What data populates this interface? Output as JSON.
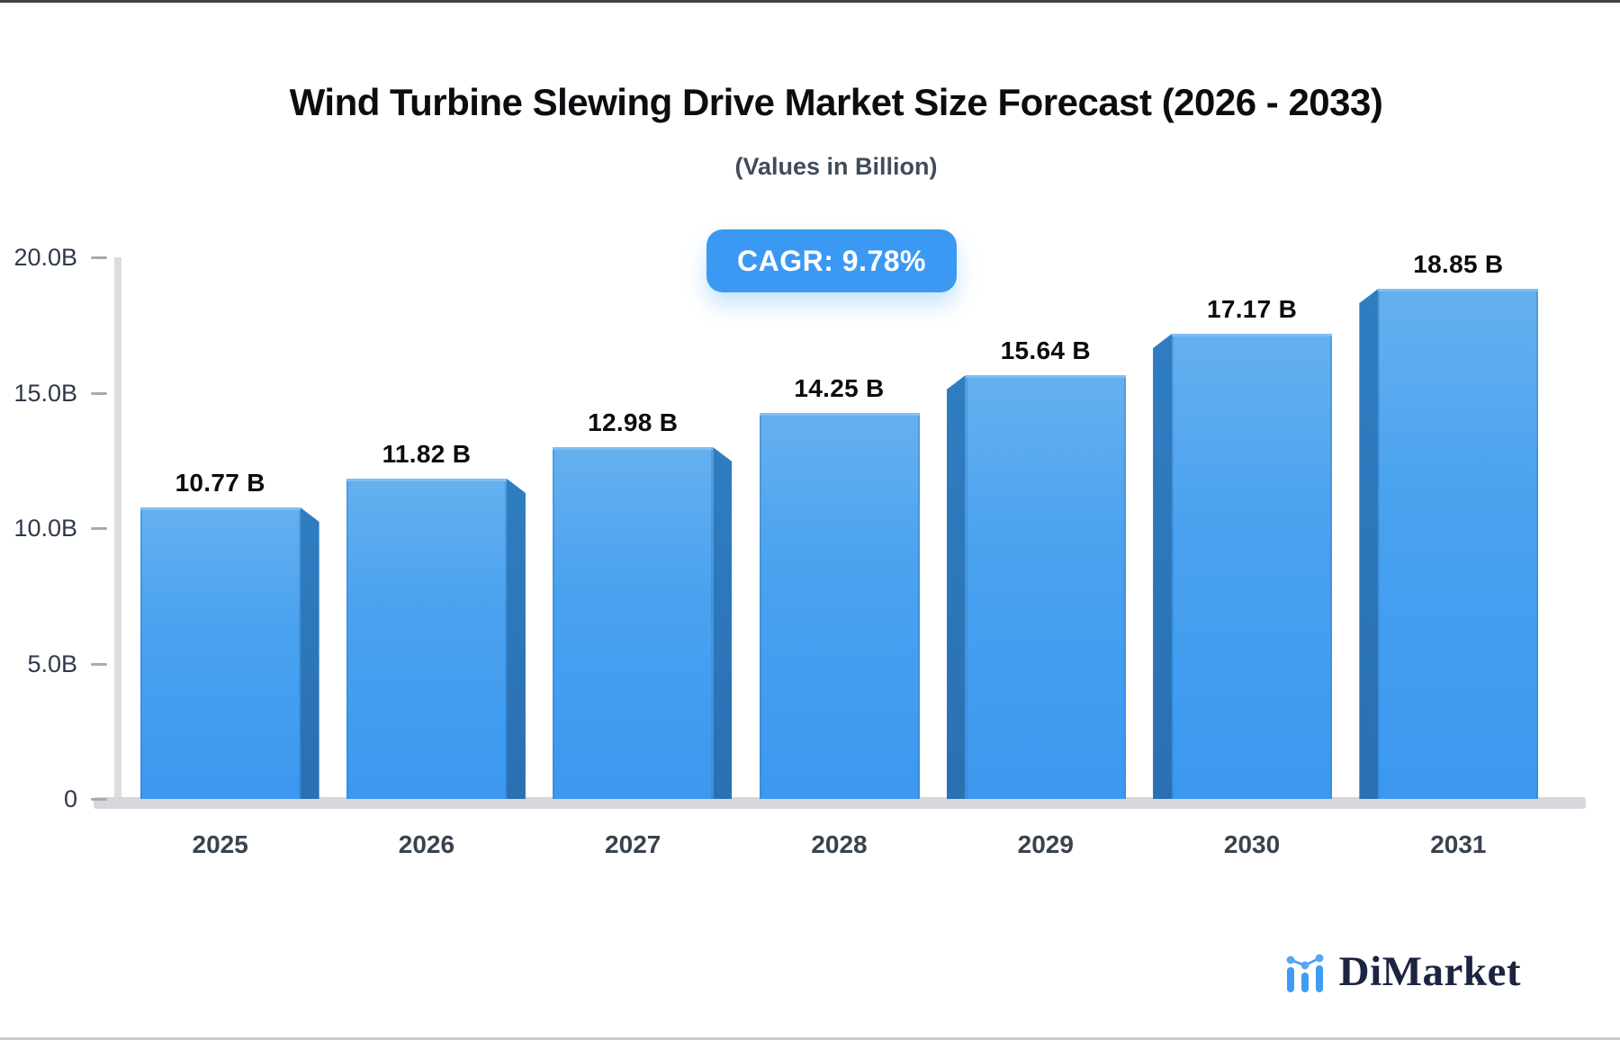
{
  "header": {
    "title": "Wind Turbine Slewing Drive Market Size Forecast (2026 - 2033)",
    "subtitle": "(Values in Billion)"
  },
  "badge": {
    "label": "CAGR: 9.78%"
  },
  "chart_data": {
    "type": "bar",
    "title": "Wind Turbine Slewing Drive Market Size Forecast (2026 - 2033)",
    "subtitle": "(Values in Billion)",
    "cagr_label": "CAGR: 9.78%",
    "categories": [
      "2025",
      "2026",
      "2027",
      "2028",
      "2029",
      "2030",
      "2031"
    ],
    "values": [
      10.77,
      11.82,
      12.98,
      14.25,
      15.64,
      17.17,
      18.85
    ],
    "value_labels": [
      "10.77 B",
      "11.82 B",
      "12.98 B",
      "14.25 B",
      "15.64 B",
      "17.17 B",
      "18.85 B"
    ],
    "ylim": [
      0,
      20
    ],
    "yticks": [
      {
        "label": "20.0B",
        "value": 20
      },
      {
        "label": "15.0B",
        "value": 15
      },
      {
        "label": "10.0B",
        "value": 10
      },
      {
        "label": "5.0B",
        "value": 5
      },
      {
        "label": "0",
        "value": 0
      }
    ],
    "xlabel": "",
    "ylabel": "",
    "grid": "off",
    "legend": "none",
    "bar_style": "3d-extruded-toward-center"
  },
  "colors": {
    "accent_blue": "#3B99F3",
    "badge_text": "#FFFFFF",
    "bar_face_top": "#65B0EF",
    "bar_face_bottom": "#3C98F0",
    "bar_side": "#2C76B9",
    "title": "#0C0D10",
    "subtitle": "#414C5B",
    "axis_label": "#2F3A49",
    "year_label": "#39434F",
    "value_label": "#0B0C0E",
    "axis_line": "#DBDDE0",
    "baseline": "#D5D7DA",
    "tick": "#A6ABB1",
    "logo_text": "#1B2440",
    "logo_icon_blue": "#3E9CF4"
  },
  "logo": {
    "text": "DiMarket",
    "icon": "bar-chart-icon"
  }
}
